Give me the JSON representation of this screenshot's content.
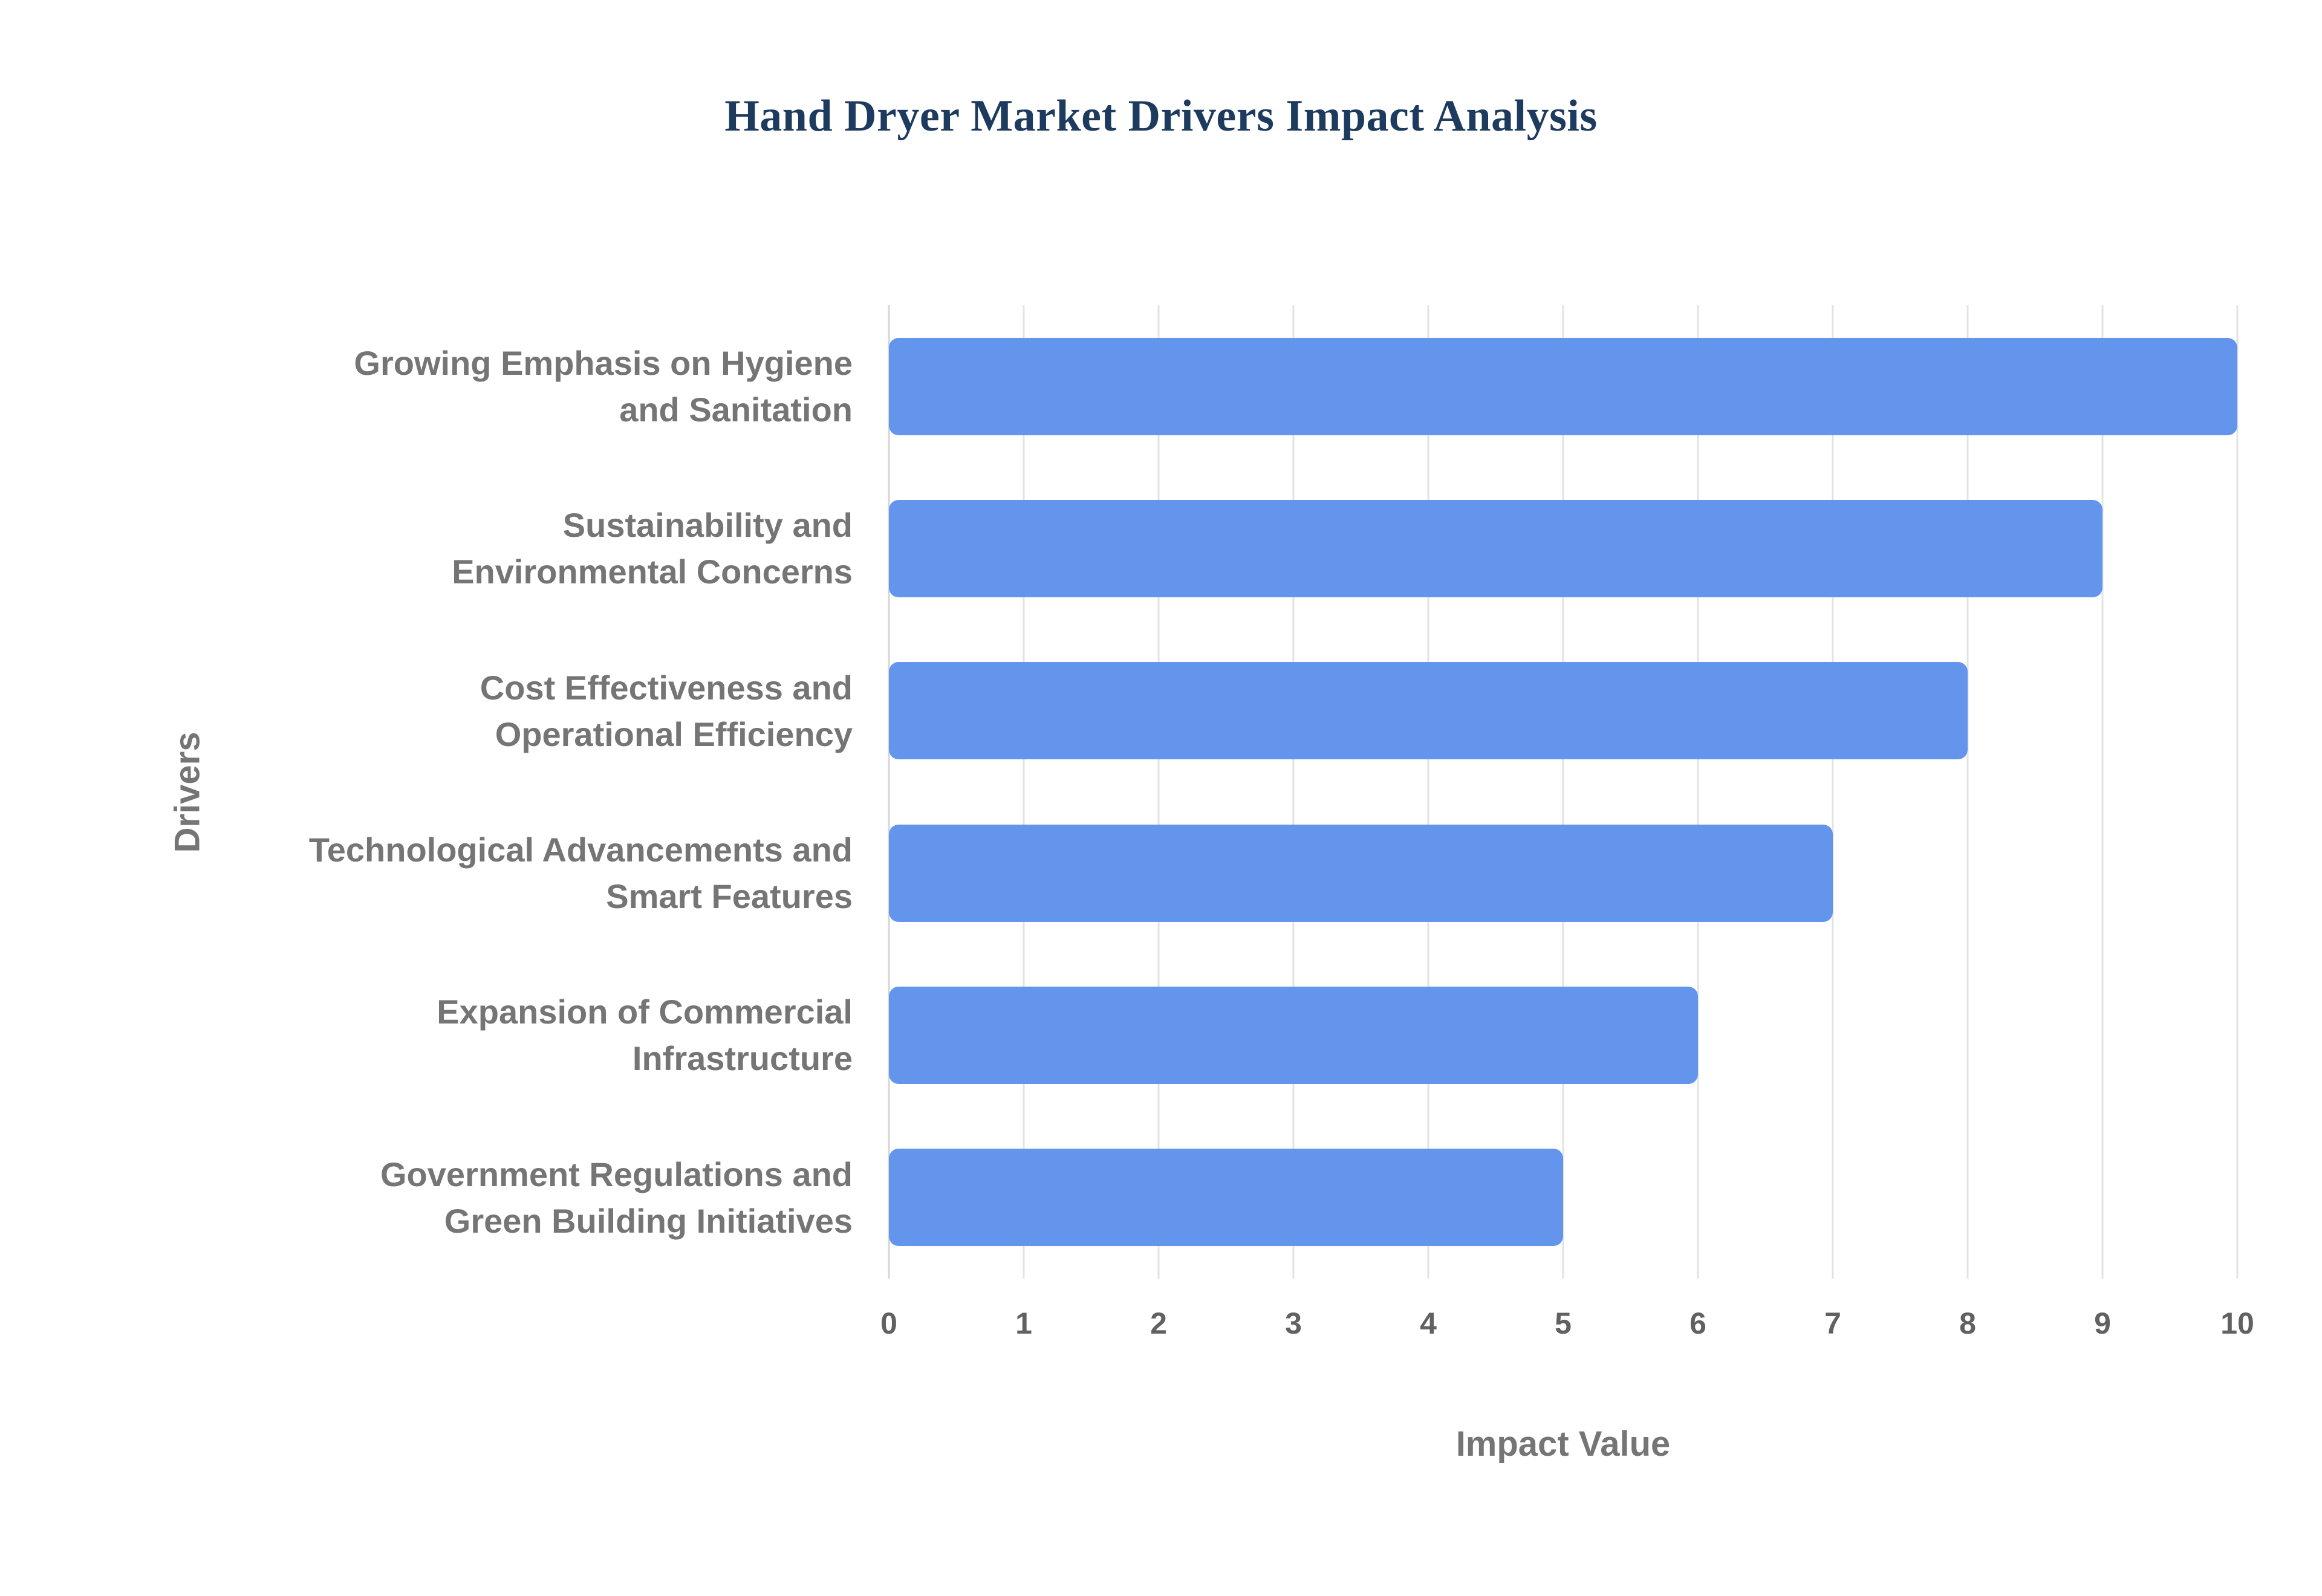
{
  "chart_data": {
    "type": "bar",
    "orientation": "horizontal",
    "title": "Hand Dryer Market Drivers Impact Analysis",
    "xlabel": "Impact Value",
    "ylabel": "Drivers",
    "categories": [
      "Growing Emphasis on Hygiene\nand Sanitation",
      "Sustainability and\nEnvironmental Concerns",
      "Cost Effectiveness and\nOperational Efficiency",
      "Technological Advancements and\nSmart Features",
      "Expansion of Commercial\nInfrastructure",
      "Government Regulations and\nGreen Building Initiatives"
    ],
    "values": [
      10,
      9,
      8,
      7,
      6,
      5
    ],
    "xlim": [
      0,
      10
    ],
    "xticks": [
      0,
      1,
      2,
      3,
      4,
      5,
      6,
      7,
      8,
      9,
      10
    ],
    "grid": true,
    "legend": false,
    "colors": {
      "bar": "#6495ED",
      "title": "#1d3b5e",
      "axis_text": "#757575",
      "gridline": "#e3e3e3",
      "axis_line": "#d6d6d6"
    }
  }
}
